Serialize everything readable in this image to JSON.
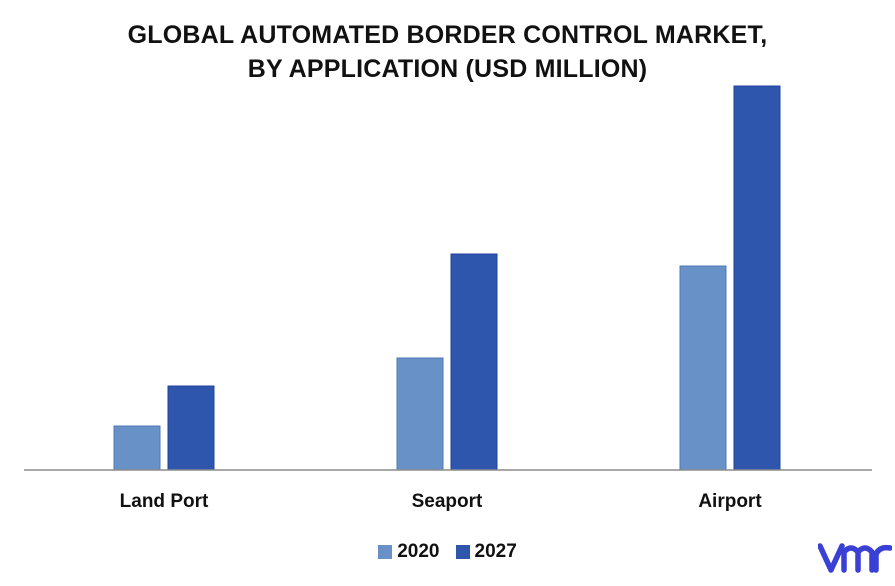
{
  "title": {
    "line1": "GLOBAL AUTOMATED BORDER CONTROL MARKET,",
    "line2": "BY APPLICATION (USD MILLION)"
  },
  "colors": {
    "series_2020": "#6891c8",
    "series_2020_border": "#4f78b3",
    "series_2027": "#2f56ad",
    "series_2027_border": "#21439a",
    "axis": "#8c8c8c",
    "logo": "#3a3fd6"
  },
  "logo": {
    "icon": "vmr-logo-icon"
  },
  "chart_data": {
    "type": "bar",
    "title": "GLOBAL AUTOMATED BORDER CONTROL MARKET, BY APPLICATION (USD MILLION)",
    "categories": [
      "Land Port",
      "Seaport",
      "Airport"
    ],
    "series": [
      {
        "name": "2020",
        "values": [
          11,
          28,
          51
        ]
      },
      {
        "name": "2027",
        "values": [
          21,
          54,
          96
        ]
      }
    ],
    "xlabel": "",
    "ylabel": "",
    "ylim": [
      0,
      110
    ],
    "grid": false,
    "legend": "bottom-center"
  }
}
